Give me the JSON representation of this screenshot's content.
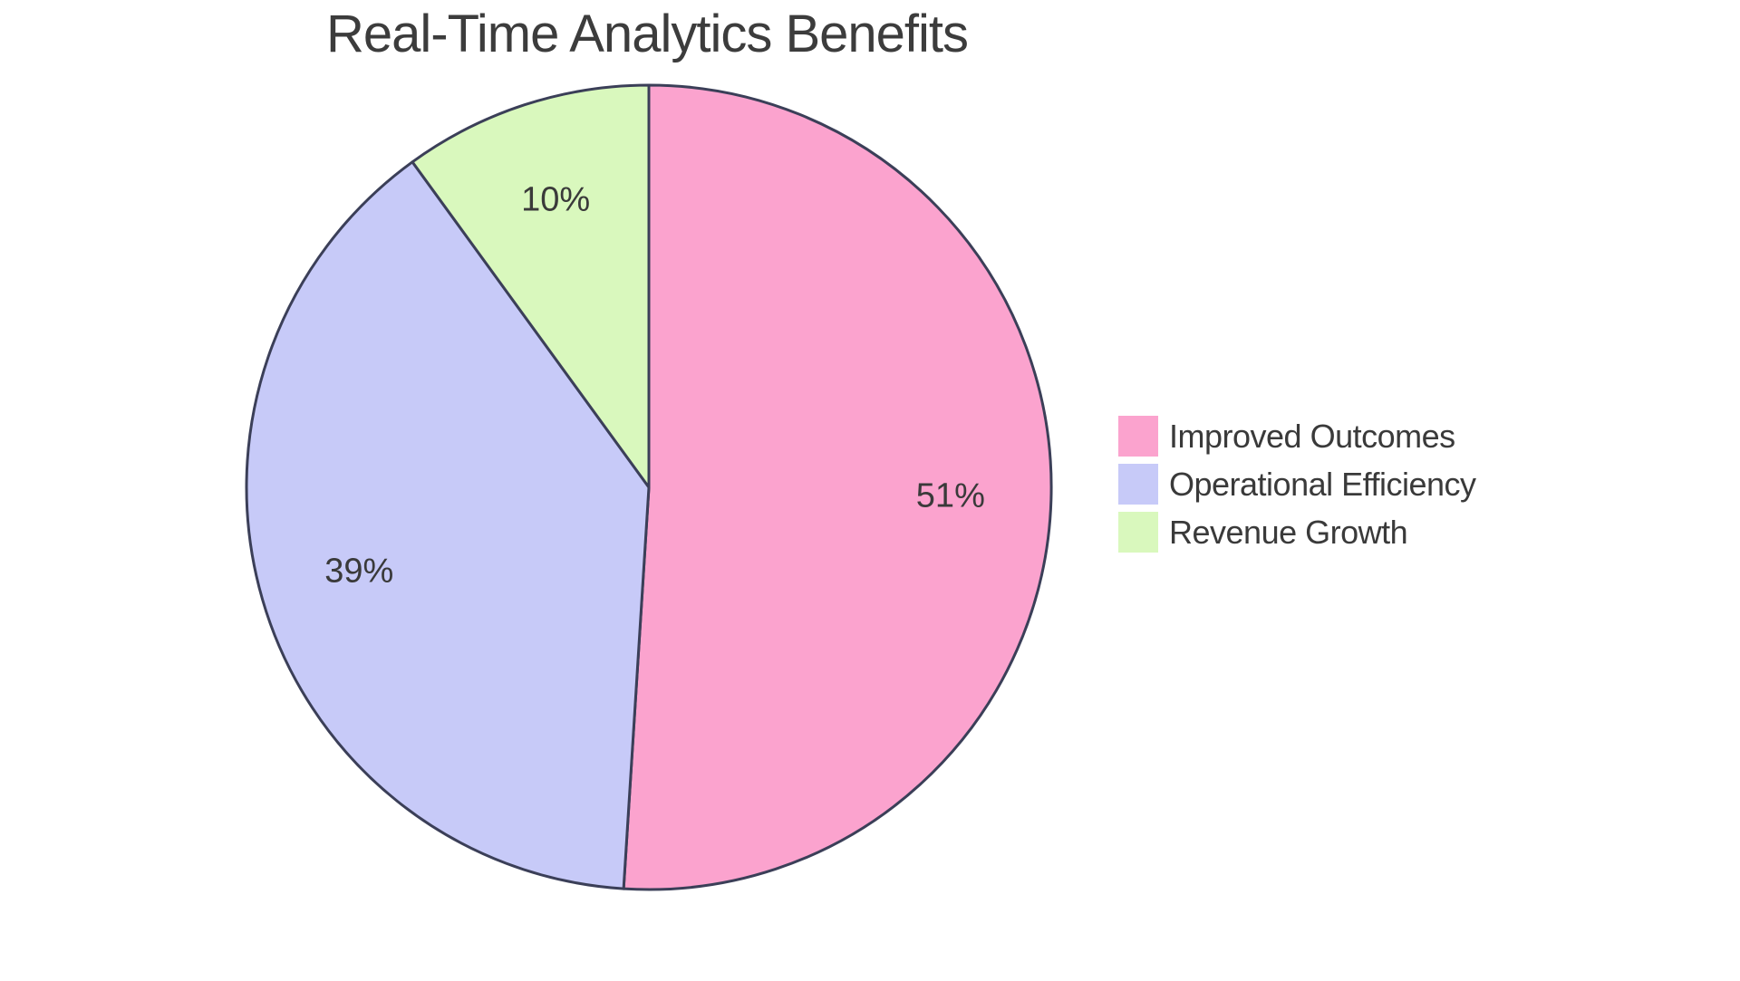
{
  "chart_data": {
    "type": "pie",
    "title": "Real-Time Analytics Benefits",
    "labels": [
      "Improved Outcomes",
      "Operational Efficiency",
      "Revenue Growth"
    ],
    "values": [
      51,
      39,
      10
    ],
    "percent_labels": [
      "51%",
      "39%",
      "10%"
    ],
    "colors": [
      "#FBA3CE",
      "#C7CAF8",
      "#D9F8BD"
    ],
    "stroke_color": "#3B3F58",
    "text_color": "#3A3A3A",
    "start_angle_deg": 0,
    "direction": "clockwise",
    "legend_position": "right",
    "background": "#FFFFFF"
  }
}
